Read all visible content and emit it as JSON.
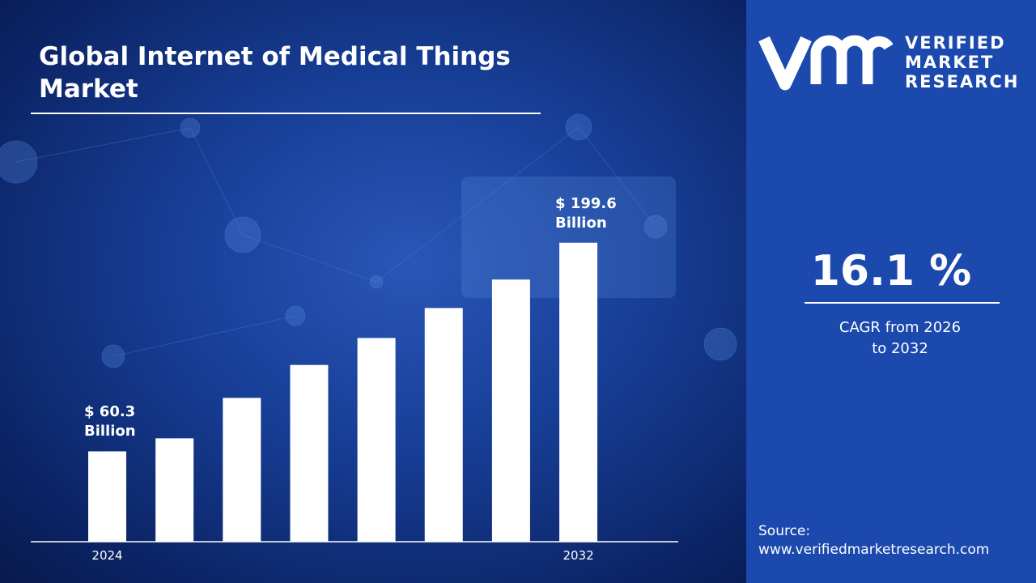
{
  "chart_data": {
    "type": "bar",
    "title": "Global Internet of Medical Things Market",
    "categories": [
      "2024",
      null,
      null,
      null,
      null,
      null,
      null,
      "2032"
    ],
    "values": [
      60.3,
      69,
      96,
      118,
      136,
      156,
      175,
      199.6
    ],
    "value_labels": [
      "$ 60.3 Billion",
      null,
      null,
      null,
      null,
      null,
      null,
      "$ 199.6 Billion"
    ],
    "color": "#ffffff"
  },
  "brand": {
    "lines": [
      "VERIFIED",
      "MARKET",
      "RESEARCH"
    ]
  },
  "cagr": {
    "value": "16.1 %",
    "caption": "CAGR from 2026 to 2032"
  },
  "source": {
    "label": "Source:",
    "url": "www.verifiedmarketresearch.com"
  }
}
